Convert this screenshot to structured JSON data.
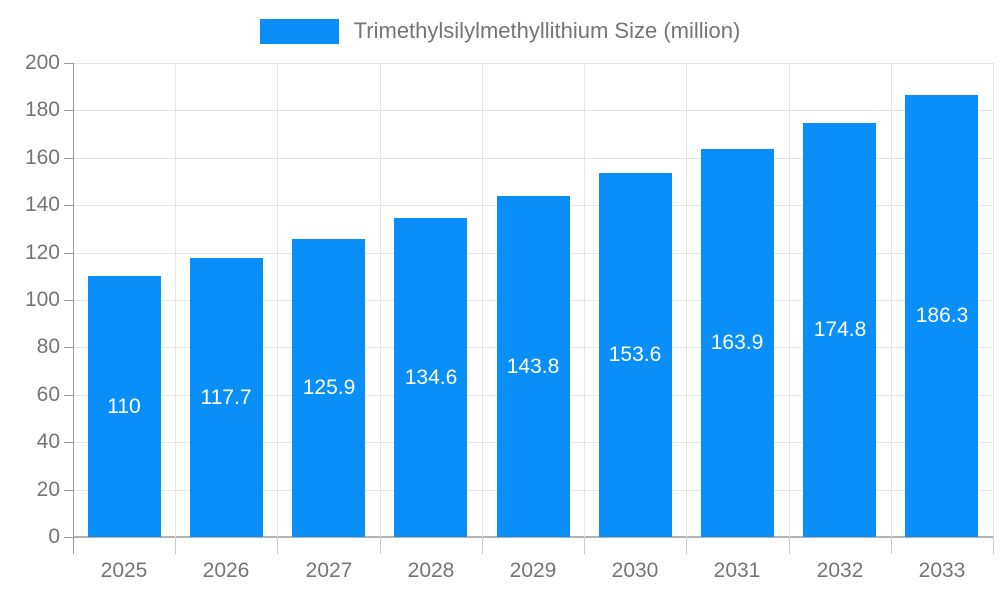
{
  "chart_data": {
    "type": "bar",
    "title": "",
    "xlabel": "",
    "ylabel": "",
    "categories": [
      "2025",
      "2026",
      "2027",
      "2028",
      "2029",
      "2030",
      "2031",
      "2032",
      "2033"
    ],
    "series": [
      {
        "name": "Trimethylsilylmethyllithium Size (million)",
        "values": [
          110,
          117.7,
          125.9,
          134.6,
          143.8,
          153.6,
          163.9,
          174.8,
          186.3
        ],
        "value_labels": [
          "110",
          "117.7",
          "125.9",
          "134.6",
          "143.8",
          "153.6",
          "163.9",
          "174.8",
          "186.3"
        ]
      }
    ],
    "ylim": [
      0,
      200
    ],
    "yticks": [
      0,
      20,
      40,
      60,
      80,
      100,
      120,
      140,
      160,
      180,
      200
    ],
    "grid": true,
    "legend_position": "top",
    "colors": {
      "bar": "#0a8ff8",
      "gridline": "#e6e6e6",
      "axis_line": "#9b9b9b",
      "baseline": "#b3b3b3",
      "minor_tick": "#cccccc",
      "tick_text": "#757575",
      "value_text": "#ffffff",
      "background": "#ffffff"
    }
  }
}
